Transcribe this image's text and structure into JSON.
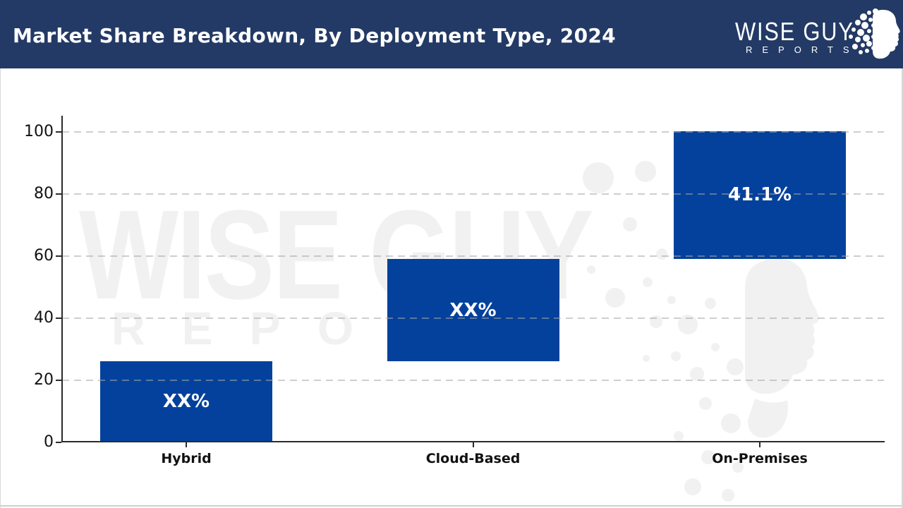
{
  "header": {
    "title": "Market Share Breakdown, By Deployment Type, 2024",
    "logo": {
      "wordmark": "WISE GUY",
      "subtext": "REPORTS"
    }
  },
  "watermark": {
    "wordmark": "WISE GUY",
    "subtext": "REPORTS"
  },
  "colors": {
    "header_bg": "#233a66",
    "bar": "#04419c",
    "title_text": "#ffffff",
    "bar_label_text": "#ffffff",
    "axis": "#2b2b2b",
    "tick_text": "#111111",
    "gridline": "#cccccc",
    "watermark": "#f1f1f1",
    "background": "#ffffff"
  },
  "chart_data": {
    "type": "bar",
    "subtype": "floating-waterfall",
    "title": "Market Share Breakdown, By Deployment Type, 2024",
    "xlabel": "",
    "ylabel": "",
    "categories": [
      "Hybrid",
      "Cloud-Based",
      "On-Premises"
    ],
    "segments": [
      {
        "category": "Hybrid",
        "from": 0,
        "to": 26,
        "label": "XX%"
      },
      {
        "category": "Cloud-Based",
        "from": 26,
        "to": 59,
        "label": "XX%"
      },
      {
        "category": "On-Premises",
        "from": 59,
        "to": 100.1,
        "label": "41.1%"
      }
    ],
    "yticks": [
      0,
      20,
      40,
      60,
      80,
      100
    ],
    "ylim": [
      0,
      105
    ],
    "grid": "dashed-horizontal-over-bars",
    "legend": "none"
  }
}
